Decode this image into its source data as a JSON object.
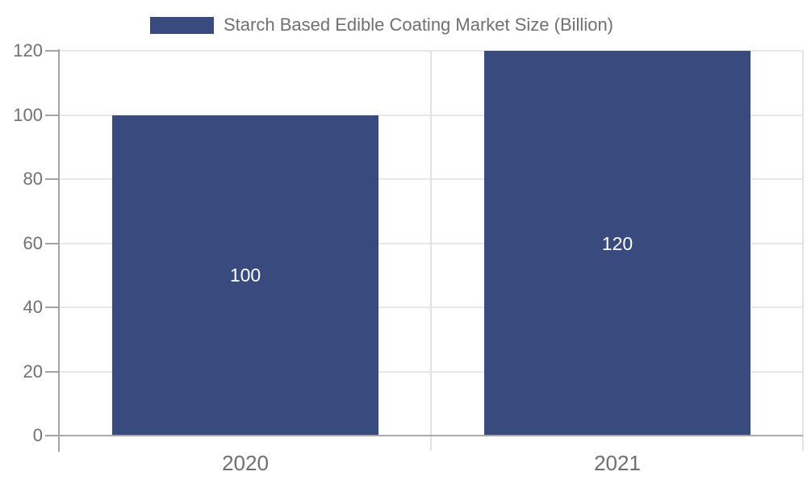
{
  "chart_data": {
    "type": "bar",
    "title": "",
    "legend": "Starch Based Edible Coating Market Size (Billion)",
    "legend_position": "top",
    "categories": [
      "2020",
      "2021"
    ],
    "values": [
      100,
      120
    ],
    "value_labels": [
      "100",
      "120"
    ],
    "xlabel": "",
    "ylabel": "",
    "ylim": [
      0,
      120
    ],
    "ytick_step": 20,
    "yticks": [
      "0",
      "20",
      "40",
      "60",
      "80",
      "100",
      "120"
    ],
    "grid": true,
    "colors": {
      "bar": "#384A7E",
      "grid": "#E7E7E8",
      "separator": "#E2E2E4",
      "axis": "#A3A3A3",
      "baseline": "#A9A9A9",
      "text": "#707070",
      "value_label": "#FFFFFF"
    }
  }
}
